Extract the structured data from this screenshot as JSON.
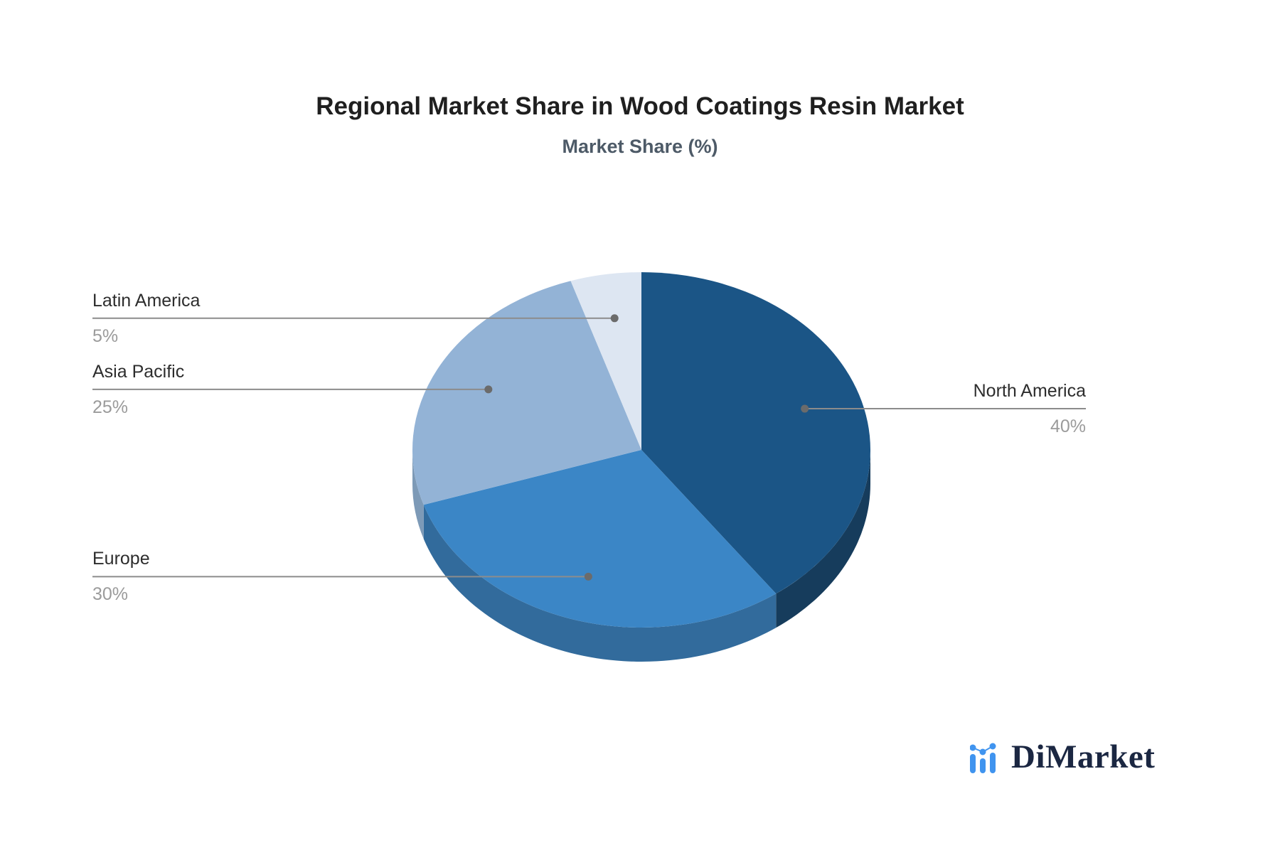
{
  "header": {
    "title": "Regional Market Share in Wood Coatings Resin Market",
    "subtitle": "Market Share (%)"
  },
  "chart_data": {
    "type": "pie",
    "style": "3d",
    "title": "Regional Market Share in Wood Coatings Resin Market",
    "subtitle": "Market Share (%)",
    "unit": "%",
    "start_angle_deg": 0,
    "direction": "clockwise",
    "legend_position": "none",
    "categories": [
      "North America",
      "Europe",
      "Asia Pacific",
      "Latin America"
    ],
    "values": [
      40,
      30,
      25,
      5
    ],
    "value_labels": [
      "40%",
      "30%",
      "25%",
      "5%"
    ],
    "colors": [
      "#1B5586",
      "#3B86C6",
      "#93B3D6",
      "#DDE6F2"
    ],
    "side_colors": [
      "#163C5C",
      "#326B9C",
      "#7D9AB7",
      "#BFC9D6"
    ],
    "leader_line_color": "#8C8C8C",
    "leader_dot_color": "#6B6B6B",
    "label_text_color": "#2D2D2D",
    "value_text_color": "#9B9B9B"
  },
  "watermark": {
    "text": "DiMarket",
    "icon": "bar-chart-logo-icon",
    "text_color": "#1B2742",
    "icon_color": "#4094EF"
  }
}
